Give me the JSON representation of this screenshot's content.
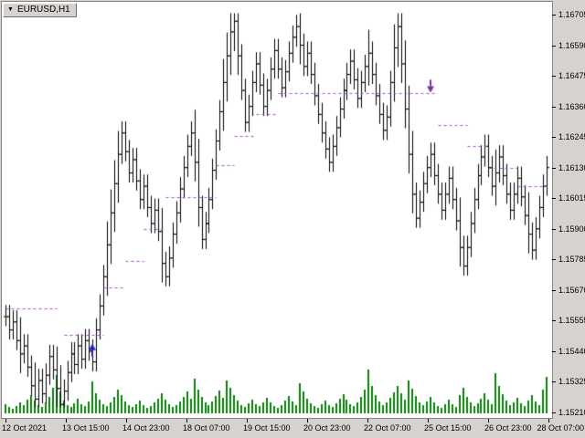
{
  "window": {
    "background": "#d6d3ce"
  },
  "symbol_toolbar": {
    "dropdown_icon": "▼",
    "label": "EURUSD,H1"
  },
  "chart_data": {
    "type": "ohlc",
    "title": "EURUSD,H1",
    "symbol": "EURUSD",
    "timeframe": "H1",
    "ylim": [
      1.1521,
      1.16705
    ],
    "y_tick_labels": [
      "1.16705",
      "1.16590",
      "1.16475",
      "1.16360",
      "1.16245",
      "1.16130",
      "1.16015",
      "1.15900",
      "1.15785",
      "1.15670",
      "1.15555",
      "1.15440",
      "1.15325",
      "1.15210"
    ],
    "x_tick_labels": [
      "12 Oct 2021",
      "13 Oct 15:00",
      "14 Oct 23:00",
      "18 Oct 07:00",
      "19 Oct 15:00",
      "20 Oct 23:00",
      "22 Oct 07:00",
      "25 Oct 15:00",
      "26 Oct 23:00",
      "28 Oct 07:00"
    ],
    "closes": [
      1.1557,
      1.1552,
      1.1555,
      1.1548,
      1.1543,
      1.1546,
      1.1538,
      1.1531,
      1.1526,
      1.1533,
      1.1528,
      1.1535,
      1.1542,
      1.1537,
      1.153,
      1.1524,
      1.1529,
      1.1536,
      1.1543,
      1.1539,
      1.1546,
      1.1541,
      1.1548,
      1.1544,
      1.154,
      1.1552,
      1.1561,
      1.1572,
      1.1584,
      1.1596,
      1.1607,
      1.1618,
      1.1626,
      1.1619,
      1.1611,
      1.1616,
      1.1608,
      1.1601,
      1.1606,
      1.1598,
      1.1592,
      1.1597,
      1.1589,
      1.1577,
      1.1572,
      1.1579,
      1.1588,
      1.1596,
      1.1605,
      1.1613,
      1.1621,
      1.1626,
      1.1615,
      1.1598,
      1.1586,
      1.1592,
      1.1601,
      1.1612,
      1.1623,
      1.1634,
      1.1645,
      1.1655,
      1.1664,
      1.1668,
      1.1655,
      1.1642,
      1.163,
      1.1636,
      1.1645,
      1.1652,
      1.1644,
      1.1636,
      1.1642,
      1.165,
      1.1657,
      1.165,
      1.1643,
      1.1649,
      1.1656,
      1.1662,
      1.1666,
      1.1659,
      1.1651,
      1.1656,
      1.1648,
      1.164,
      1.1633,
      1.1626,
      1.162,
      1.1615,
      1.1621,
      1.1628,
      1.1635,
      1.1642,
      1.1648,
      1.1653,
      1.1646,
      1.1639,
      1.1645,
      1.1651,
      1.1656,
      1.1648,
      1.164,
      1.1633,
      1.1627,
      1.1632,
      1.1645,
      1.1658,
      1.1666,
      1.1652,
      1.1635,
      1.1618,
      1.1603,
      1.1594,
      1.16,
      1.1607,
      1.1613,
      1.1618,
      1.161,
      1.1603,
      1.1597,
      1.1603,
      1.1609,
      1.1601,
      1.1593,
      1.1583,
      1.1576,
      1.1583,
      1.1592,
      1.1601,
      1.161,
      1.1617,
      1.1621,
      1.1613,
      1.1606,
      1.1611,
      1.1617,
      1.161,
      1.1603,
      1.1597,
      1.1603,
      1.1609,
      1.1602,
      1.1595,
      1.1588,
      1.1582,
      1.159,
      1.1598,
      1.1606,
      1.1613
    ],
    "volumes": [
      10,
      7,
      5,
      8,
      12,
      9,
      15,
      20,
      14,
      9,
      7,
      12,
      18,
      28,
      42,
      24,
      14,
      9,
      7,
      11,
      16,
      10,
      8,
      13,
      35,
      22,
      15,
      10,
      8,
      12,
      18,
      26,
      20,
      13,
      9,
      7,
      10,
      14,
      9,
      6,
      8,
      12,
      16,
      22,
      15,
      10,
      7,
      9,
      13,
      18,
      24,
      16,
      38,
      26,
      18,
      12,
      9,
      13,
      19,
      25,
      17,
      36,
      28,
      20,
      14,
      9,
      7,
      11,
      15,
      10,
      8,
      12,
      17,
      12,
      8,
      6,
      9,
      14,
      19,
      13,
      9,
      33,
      24,
      16,
      11,
      8,
      6,
      10,
      14,
      9,
      7,
      11,
      16,
      21,
      15,
      10,
      8,
      12,
      18,
      26,
      48,
      30,
      20,
      13,
      9,
      12,
      17,
      23,
      30,
      22,
      15,
      36,
      27,
      19,
      12,
      9,
      13,
      18,
      12,
      8,
      6,
      10,
      15,
      10,
      7,
      20,
      28,
      18,
      12,
      8,
      11,
      16,
      22,
      15,
      10,
      44,
      30,
      21,
      14,
      9,
      12,
      17,
      11,
      8,
      14,
      20,
      13,
      9,
      26,
      40
    ],
    "wick": {
      "default": 0.0008,
      "wide": 0.0016,
      "wide_indices": [
        4,
        8,
        14,
        15,
        28,
        29,
        30,
        31,
        43,
        52,
        53,
        60,
        61,
        62,
        63,
        64,
        81,
        100,
        107,
        108,
        109,
        110,
        111,
        112,
        125,
        135,
        144
      ]
    },
    "indicator_step_line": {
      "name": "trailing-stop-step-line",
      "style": "dashed",
      "color": "#A84CC6",
      "segments": [
        [
          0,
          14,
          1.156
        ],
        [
          16,
          27,
          1.155
        ],
        [
          27,
          33,
          1.1568
        ],
        [
          33,
          38,
          1.1578
        ],
        [
          38,
          44,
          1.159
        ],
        [
          44,
          58,
          1.1602
        ],
        [
          58,
          63,
          1.1614
        ],
        [
          63,
          69,
          1.1625
        ],
        [
          69,
          75,
          1.1633
        ],
        [
          75,
          118,
          1.1641
        ],
        [
          119,
          127,
          1.1629
        ],
        [
          127,
          133,
          1.1621
        ],
        [
          133,
          141,
          1.1613
        ],
        [
          141,
          149,
          1.1606
        ]
      ]
    },
    "signals": [
      {
        "index": 24,
        "price": 1.1542,
        "direction": "up",
        "color": "#2222BE",
        "glyph": "↑"
      },
      {
        "index": 117,
        "price": 1.1646,
        "direction": "down",
        "color": "#7B2FA8",
        "glyph": "↓"
      }
    ],
    "colors": {
      "bars": "#000000",
      "volume": "#0A800A",
      "background": "#ffffff",
      "axis_text": "#000000"
    },
    "legend_position": "none",
    "grid": false
  }
}
